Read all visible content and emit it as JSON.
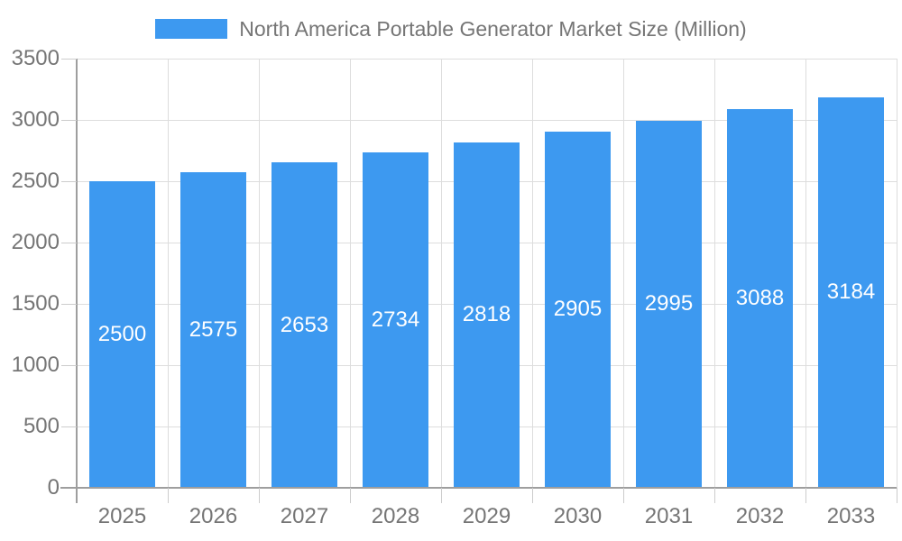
{
  "chart_data": {
    "type": "bar",
    "title": "North America Portable Generator Market Size (Million)",
    "categories": [
      "2025",
      "2026",
      "2027",
      "2028",
      "2029",
      "2030",
      "2031",
      "2032",
      "2033"
    ],
    "series": [
      {
        "name": "North America Portable Generator Market Size (Million)",
        "values": [
          2500,
          2575,
          2653,
          2734,
          2818,
          2905,
          2995,
          3088,
          3184
        ]
      }
    ],
    "xlabel": "",
    "ylabel": "",
    "ylim": [
      0,
      3500
    ],
    "yticks": [
      0,
      500,
      1000,
      1500,
      2000,
      2500,
      3000,
      3500
    ],
    "grid": true,
    "legend_position": "top",
    "colors": {
      "bar": "#3D99F0",
      "value_label": "#FFFFFF",
      "axis_text": "#757575",
      "legend_text": "#757575",
      "gridline": "#DDDDDD",
      "tick": "#CCCCCC",
      "axis_line": "#9E9E9E",
      "background": "#FFFFFF"
    }
  }
}
